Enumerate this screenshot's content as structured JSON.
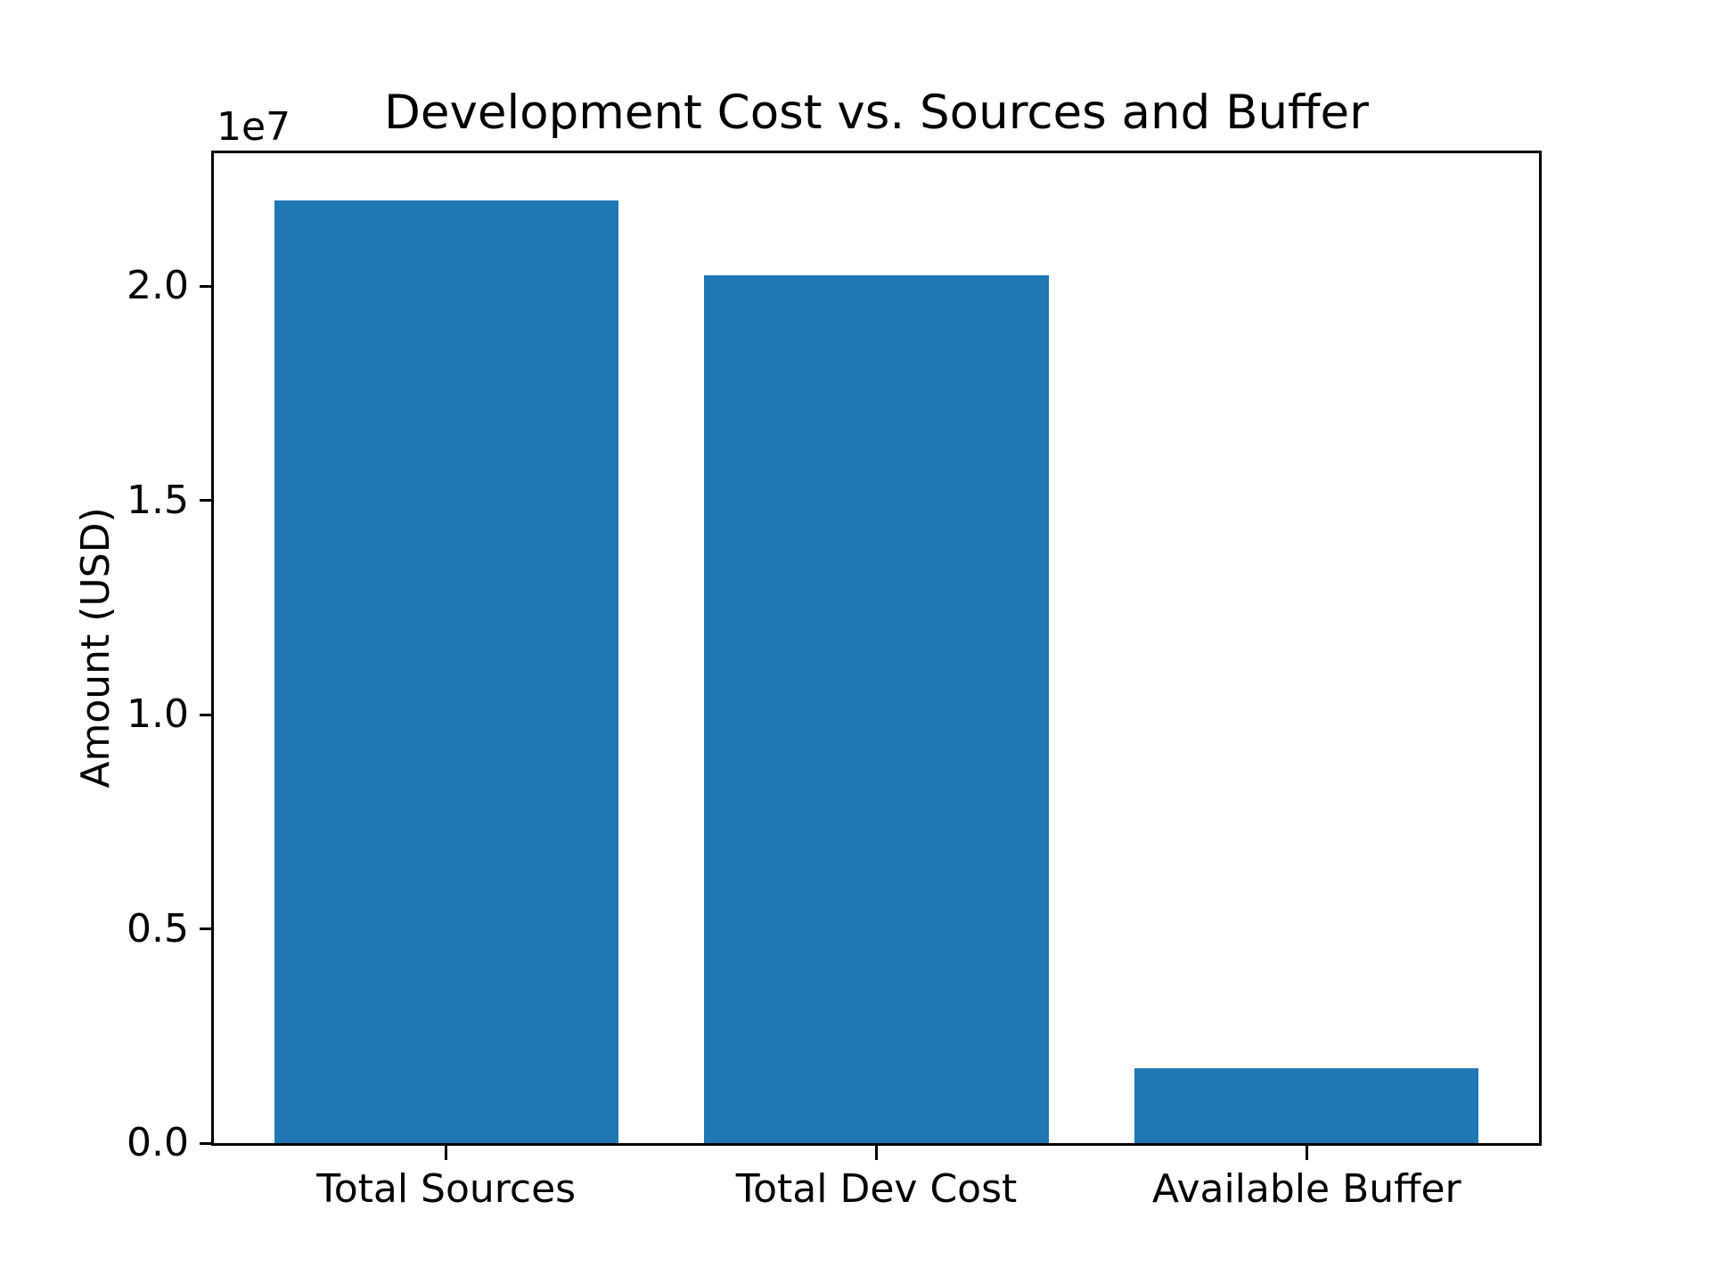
{
  "chart_data": {
    "type": "bar",
    "title": "Development Cost vs. Sources and Buffer",
    "xlabel": "",
    "ylabel": "Amount (USD)",
    "y_axis_offset_label": "1e7",
    "categories": [
      "Total Sources",
      "Total Dev Cost",
      "Available Buffer"
    ],
    "values": [
      22000000,
      20250000,
      1750000
    ],
    "bar_color": "#1f77b4",
    "text_color": "#000000",
    "ylim": [
      0,
      23100000
    ],
    "yticks": {
      "values": [
        0,
        5000000,
        10000000,
        15000000,
        20000000
      ],
      "labels": [
        "0.0",
        "0.5",
        "1.0",
        "1.5",
        "2.0"
      ]
    },
    "grid": false,
    "legend": "none",
    "bar_width_fraction": 0.8
  }
}
